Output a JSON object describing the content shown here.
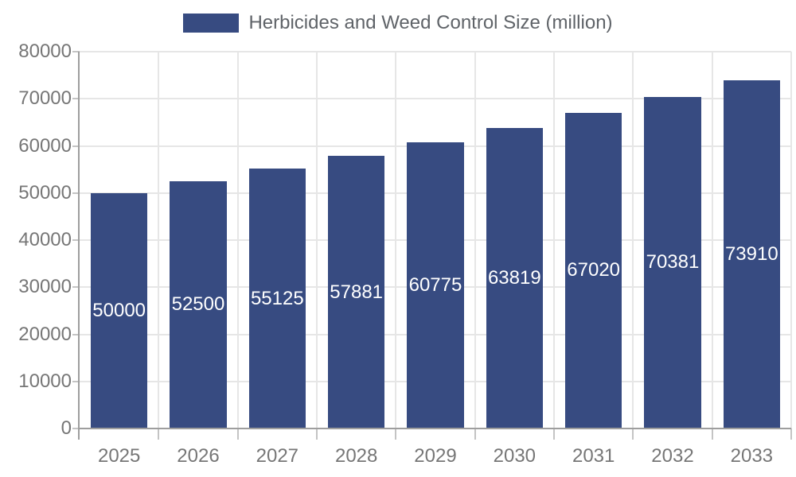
{
  "legend": {
    "label": "Herbicides and Weed Control Size (million)"
  },
  "chart_data": {
    "type": "bar",
    "title": "Herbicides and Weed Control Size (million)",
    "categories": [
      "2025",
      "2026",
      "2027",
      "2028",
      "2029",
      "2030",
      "2031",
      "2032",
      "2033"
    ],
    "values": [
      50000,
      52500,
      55125,
      57881,
      60775,
      63819,
      67020,
      70381,
      73910
    ],
    "series": [
      {
        "name": "Herbicides and Weed Control Size (million)",
        "values": [
          50000,
          52500,
          55125,
          57881,
          60775,
          63819,
          67020,
          70381,
          73910
        ]
      }
    ],
    "xlabel": "",
    "ylabel": "",
    "ylim": [
      0,
      80000
    ],
    "ytick_step": 10000,
    "ytick_labels": [
      "0",
      "10000",
      "20000",
      "30000",
      "40000",
      "50000",
      "60000",
      "70000",
      "80000"
    ],
    "grid": true,
    "legend_position": "top-center",
    "value_label_position": "inside-center"
  },
  "colors": {
    "bar": "#374B81",
    "grid": "#e6e6e6",
    "tick": "#c4c4c4",
    "axis": "#9e9e9e",
    "tick_label": "#767676",
    "legend_text": "#5f6368",
    "value_label": "#ffffff"
  }
}
